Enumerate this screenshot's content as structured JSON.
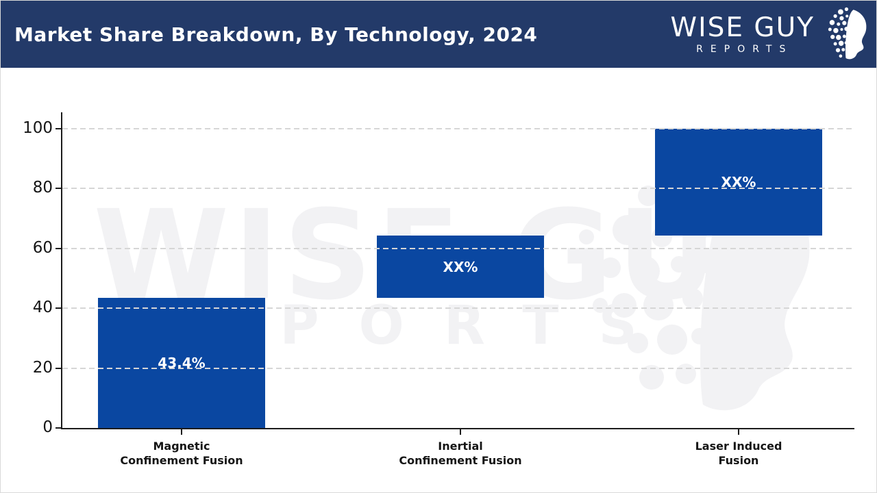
{
  "header": {
    "title": "Market Share Breakdown, By Technology, 2024",
    "logo": {
      "line1": "WISE GUY",
      "line2": "REPORTS"
    }
  },
  "watermark": {
    "line1": "WISE GUY",
    "line2": "REPORTS"
  },
  "chart_data": {
    "type": "bar",
    "subtype": "floating-waterfall",
    "title": "Market Share Breakdown, By Technology, 2024",
    "categories": [
      [
        "Magnetic",
        "Confinement Fusion"
      ],
      [
        "Inertial",
        "Confinement Fusion"
      ],
      [
        "Laser Induced",
        "Fusion"
      ]
    ],
    "segments": [
      {
        "start": 0,
        "end": 43.4,
        "label": "43.4%"
      },
      {
        "start": 43.4,
        "end": 64.3,
        "label": "XX%"
      },
      {
        "start": 64.3,
        "end": 100,
        "label": "XX%"
      }
    ],
    "yticks": [
      0,
      20,
      40,
      60,
      80,
      100
    ],
    "ylim": [
      0,
      100
    ],
    "xlabel": "",
    "ylabel": "",
    "grid": true,
    "legend_position": "none",
    "bar_color": "#0a47a1",
    "grid_color": "#d6d6d6",
    "header_color": "#233a69",
    "watermark_color": "#f2f2f4"
  }
}
